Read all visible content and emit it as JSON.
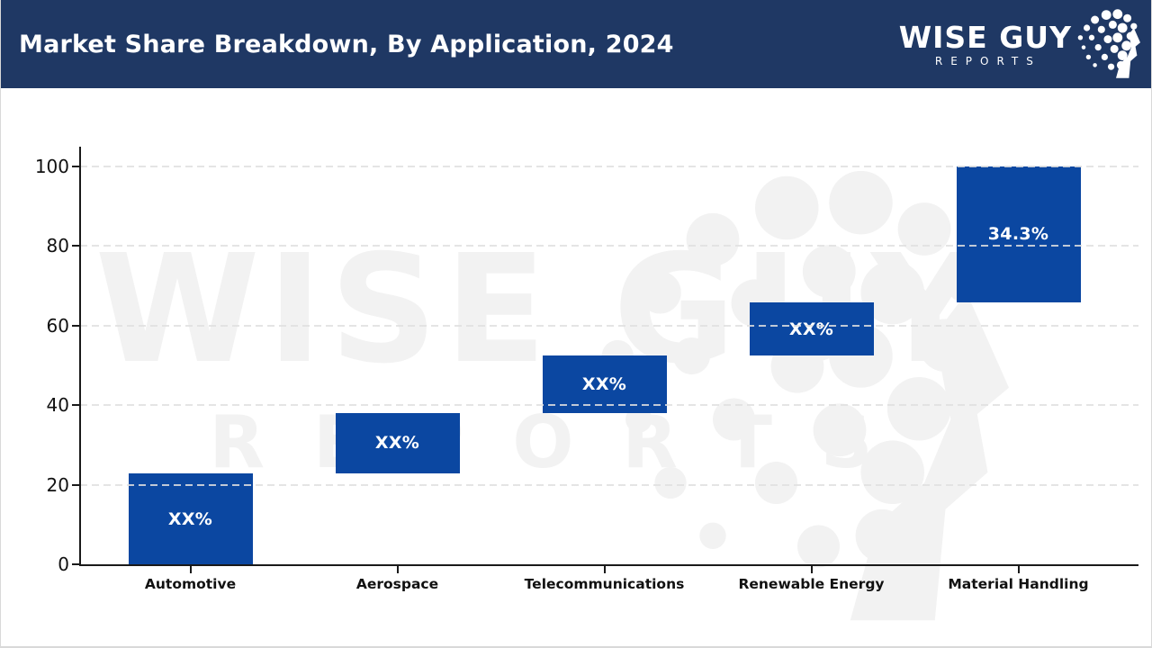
{
  "header": {
    "title": "Market Share Breakdown, By Application, 2024",
    "logo": {
      "line1": "WISE GUY",
      "line2": "REPORTS",
      "face_icon": "dotted-head-profile-icon"
    }
  },
  "watermark": {
    "line1": "WISE GUY",
    "line2": "REPORTS",
    "face_icon": "dotted-head-profile-watermark"
  },
  "colors": {
    "header_bg": "#1f3864",
    "bar": "#0b47a1",
    "bar_label": "#ffffff",
    "watermark": "#f2f2f2",
    "grid": "#e0e0e0",
    "axis": "#1a1a1a"
  },
  "chart_data": {
    "type": "bar",
    "subtype": "floating-waterfall",
    "title": "Market Share Breakdown, By Application, 2024",
    "xlabel": "",
    "ylabel": "",
    "categories": [
      "Automotive",
      "Aerospace",
      "Telecommunications",
      "Renewable Energy",
      "Material Handling"
    ],
    "segments": [
      {
        "category": "Automotive",
        "start": 0,
        "end": 22.8,
        "value": 22.8,
        "label": "XX%"
      },
      {
        "category": "Aerospace",
        "start": 22.8,
        "end": 38.0,
        "value": 15.2,
        "label": "XX%"
      },
      {
        "category": "Telecommunications",
        "start": 38.0,
        "end": 52.4,
        "value": 14.4,
        "label": "XX%"
      },
      {
        "category": "Renewable Energy",
        "start": 52.4,
        "end": 65.7,
        "value": 13.3,
        "label": "XX%"
      },
      {
        "category": "Material Handling",
        "start": 65.7,
        "end": 100.0,
        "value": 34.3,
        "label": "34.3%"
      }
    ],
    "yticks": [
      0,
      20,
      40,
      60,
      80,
      100
    ],
    "ylim": [
      0,
      104.5
    ],
    "grid": "horizontal dashed, drawn over bars",
    "legend": "none",
    "units": "%"
  }
}
